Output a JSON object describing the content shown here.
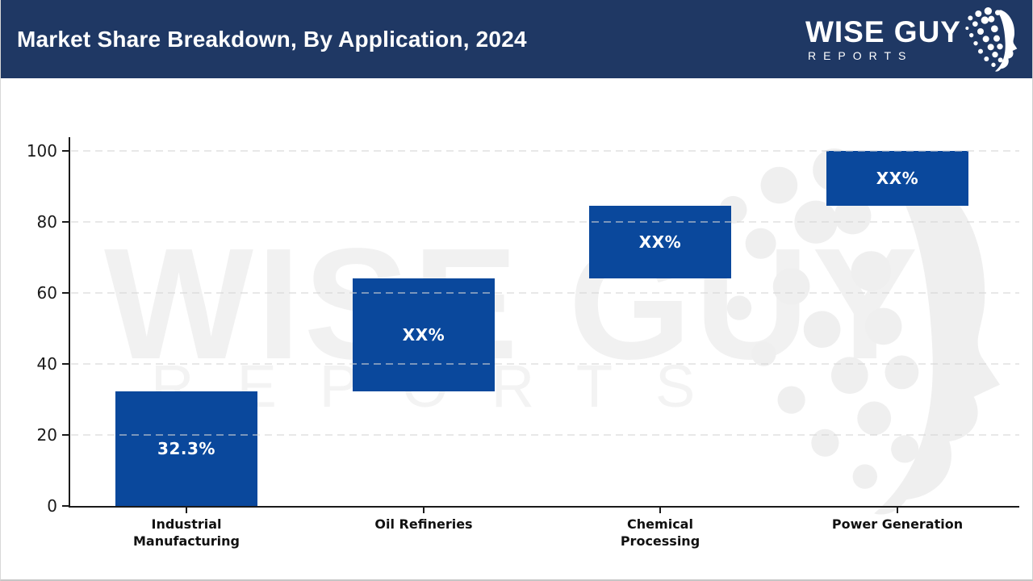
{
  "header": {
    "title": "Market Share Breakdown, By Application, 2024",
    "bg_color": "#1f3864",
    "logo": {
      "line1": "WISE GUY",
      "line2": "REPORTS"
    }
  },
  "watermark": {
    "line1": "WISE GUY",
    "line2": "REPORTS"
  },
  "chart_data": {
    "type": "bar",
    "subtype": "floating-waterfall",
    "title": "Market Share Breakdown, By Application, 2024",
    "categories": [
      "Industrial\nManufacturing",
      "Oil Refineries",
      "Chemical\nProcessing",
      "Power Generation"
    ],
    "segments": [
      {
        "category": "Industrial Manufacturing",
        "start": 0,
        "end": 32.3,
        "label": "32.3%"
      },
      {
        "category": "Oil Refineries",
        "start": 32.3,
        "end": 64.2,
        "label": "XX%"
      },
      {
        "category": "Chemical Processing",
        "start": 64.2,
        "end": 84.5,
        "label": "XX%"
      },
      {
        "category": "Power Generation",
        "start": 84.5,
        "end": 100,
        "label": "XX%"
      }
    ],
    "ylim": [
      0,
      100
    ],
    "yticks": [
      0,
      20,
      40,
      60,
      80,
      100
    ],
    "grid": {
      "horizontal": true,
      "style": "dashed",
      "drawn_on_top": true
    },
    "legend": "none",
    "bar_color": "#0a489c",
    "bar_label_color": "#ffffff",
    "axis_color": "#1a1a1a"
  }
}
